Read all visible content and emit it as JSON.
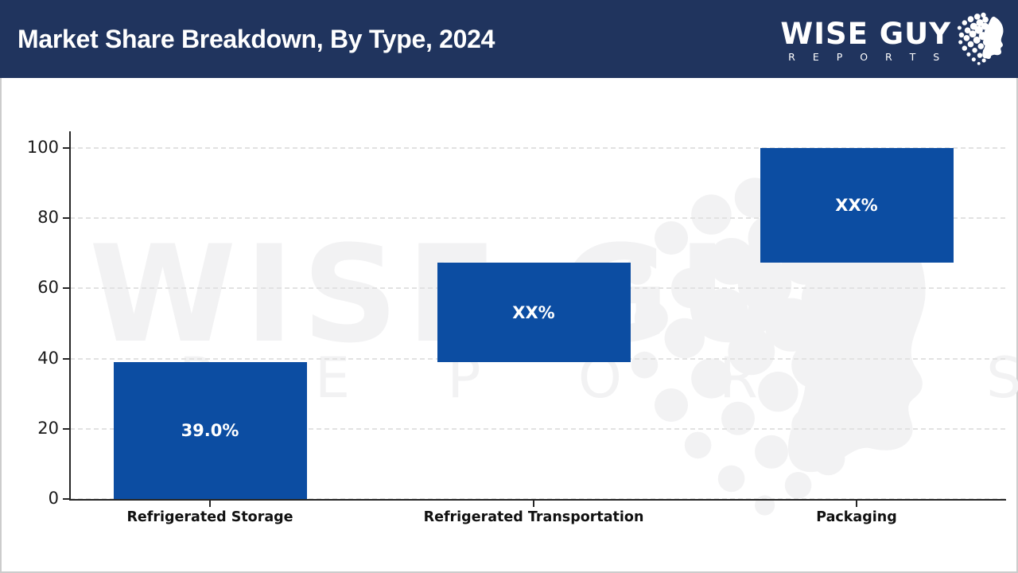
{
  "header": {
    "title": "Market Share Breakdown, By Type, 2024",
    "bg_color": "#20345e",
    "logo": {
      "line1": "WISE GUY",
      "line2": "R E P O R T S"
    }
  },
  "watermark": {
    "line1": "WISE GUY",
    "line2": "R E P O R T S",
    "color": "#f2f2f3"
  },
  "chart_data": {
    "type": "bar",
    "subtype": "waterfall",
    "title": "Market Share Breakdown, By Type, 2024",
    "xlabel": "",
    "ylabel": "",
    "ylim": [
      0,
      100
    ],
    "yticks": [
      0,
      20,
      40,
      60,
      80,
      100
    ],
    "grid": "horizontal-dashed",
    "legend": "none",
    "bar_color": "#0c4da2",
    "bar_label_color": "#ffffff",
    "categories": [
      "Refrigerated Storage",
      "Refrigerated Transportation",
      "Packaging"
    ],
    "bars": [
      {
        "category": "Refrigerated Storage",
        "label": "39.0%",
        "start": 0,
        "end": 39.0
      },
      {
        "category": "Refrigerated Transportation",
        "label": "XX%",
        "start": 39.0,
        "end": 67.3
      },
      {
        "category": "Packaging",
        "label": "XX%",
        "start": 67.3,
        "end": 100.0
      }
    ]
  }
}
